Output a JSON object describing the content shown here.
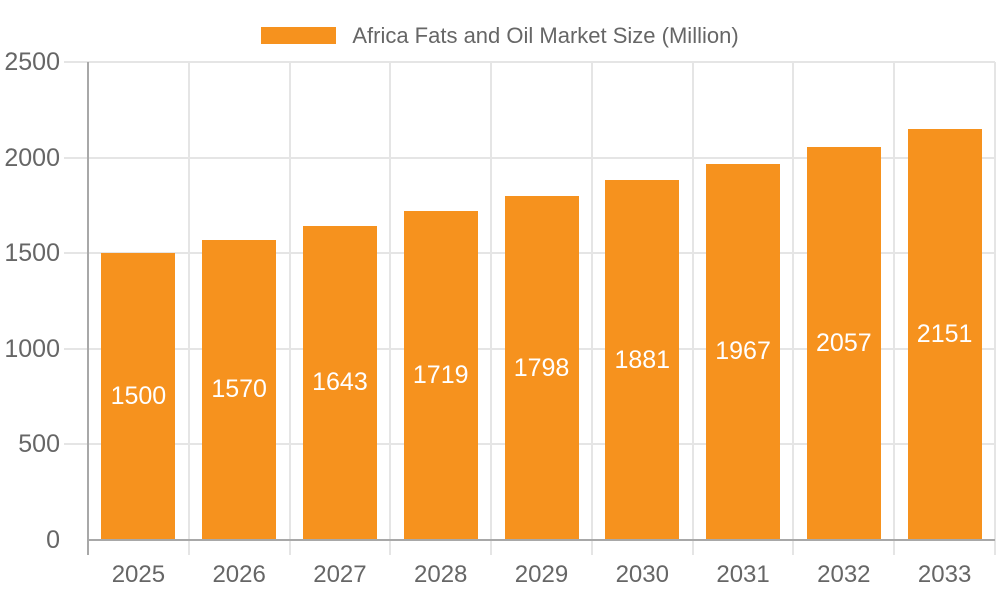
{
  "legend": {
    "items": [
      {
        "label": "Africa Fats and Oil Market Size (Million)"
      }
    ]
  },
  "chart_data": {
    "type": "bar",
    "title": "Africa Fats and Oil Market Size (Million)",
    "series_name": "Africa Fats and Oil Market Size (Million)",
    "categories": [
      "2025",
      "2026",
      "2027",
      "2028",
      "2029",
      "2030",
      "2031",
      "2032",
      "2033"
    ],
    "values": [
      1500,
      1570,
      1643,
      1719,
      1798,
      1881,
      1967,
      2057,
      2151
    ],
    "xlabel": "",
    "ylabel": "",
    "ylim": [
      0,
      2500
    ],
    "yticks": [
      0,
      500,
      1000,
      1500,
      2000,
      2500
    ],
    "grid": true,
    "legend_position": "top-center",
    "value_label_position": "inside-center"
  },
  "colors": {
    "bar": "#F6921E",
    "grid": "#E5E5E5",
    "axis_line": "#A8A8A8",
    "axis_text": "#666666",
    "value_label": "#FFFFFF",
    "background": "#FFFFFF"
  }
}
